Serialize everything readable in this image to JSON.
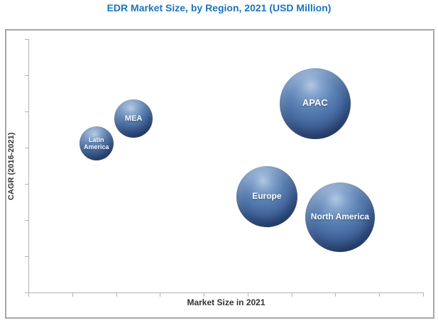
{
  "title": "EDR Market Size, by Region, 2021 (USD Million)",
  "colors": {
    "title": "#1C75BB",
    "axis_line": "#b3b3b3",
    "axis_label_text": "#333333",
    "chart_border": "#a6a6a6",
    "bubble_base": "#4a71a4",
    "bubble_highlight": "#b2c8e2",
    "bubble_dark_rim": "#213b62",
    "bubble_label_text": "#ffffff"
  },
  "chart_data": {
    "type": "scatter",
    "subtype": "bubble",
    "title": "EDR Market Size, by Region, 2021 (USD Million)",
    "xlabel": "Market Size in 2021",
    "ylabel": "CAGR (2016-2021)",
    "axis_numeric_labels": false,
    "grid": false,
    "legend_position": "none",
    "x_tick_count": 10,
    "y_tick_count": 8,
    "xlim_rel": [
      0,
      1
    ],
    "ylim_rel": [
      0,
      1
    ],
    "series": [
      {
        "name": "MEA",
        "label_lines": [
          "MEA"
        ],
        "x_rel": 0.266,
        "y_rel": 0.687,
        "radius_px": 27,
        "label_font_px": 11
      },
      {
        "name": "Latin America",
        "label_lines": [
          "Latin",
          "America"
        ],
        "x_rel": 0.172,
        "y_rel": 0.589,
        "radius_px": 24,
        "label_font_px": 9
      },
      {
        "name": "APAC",
        "label_lines": [
          "APAC"
        ],
        "x_rel": 0.725,
        "y_rel": 0.746,
        "radius_px": 50,
        "label_font_px": 13
      },
      {
        "name": "Europe",
        "label_lines": [
          "Europe"
        ],
        "x_rel": 0.603,
        "y_rel": 0.38,
        "radius_px": 43,
        "label_font_px": 12
      },
      {
        "name": "North America",
        "label_lines": [
          "North America"
        ],
        "x_rel": 0.788,
        "y_rel": 0.299,
        "radius_px": 49,
        "label_font_px": 12
      }
    ]
  }
}
